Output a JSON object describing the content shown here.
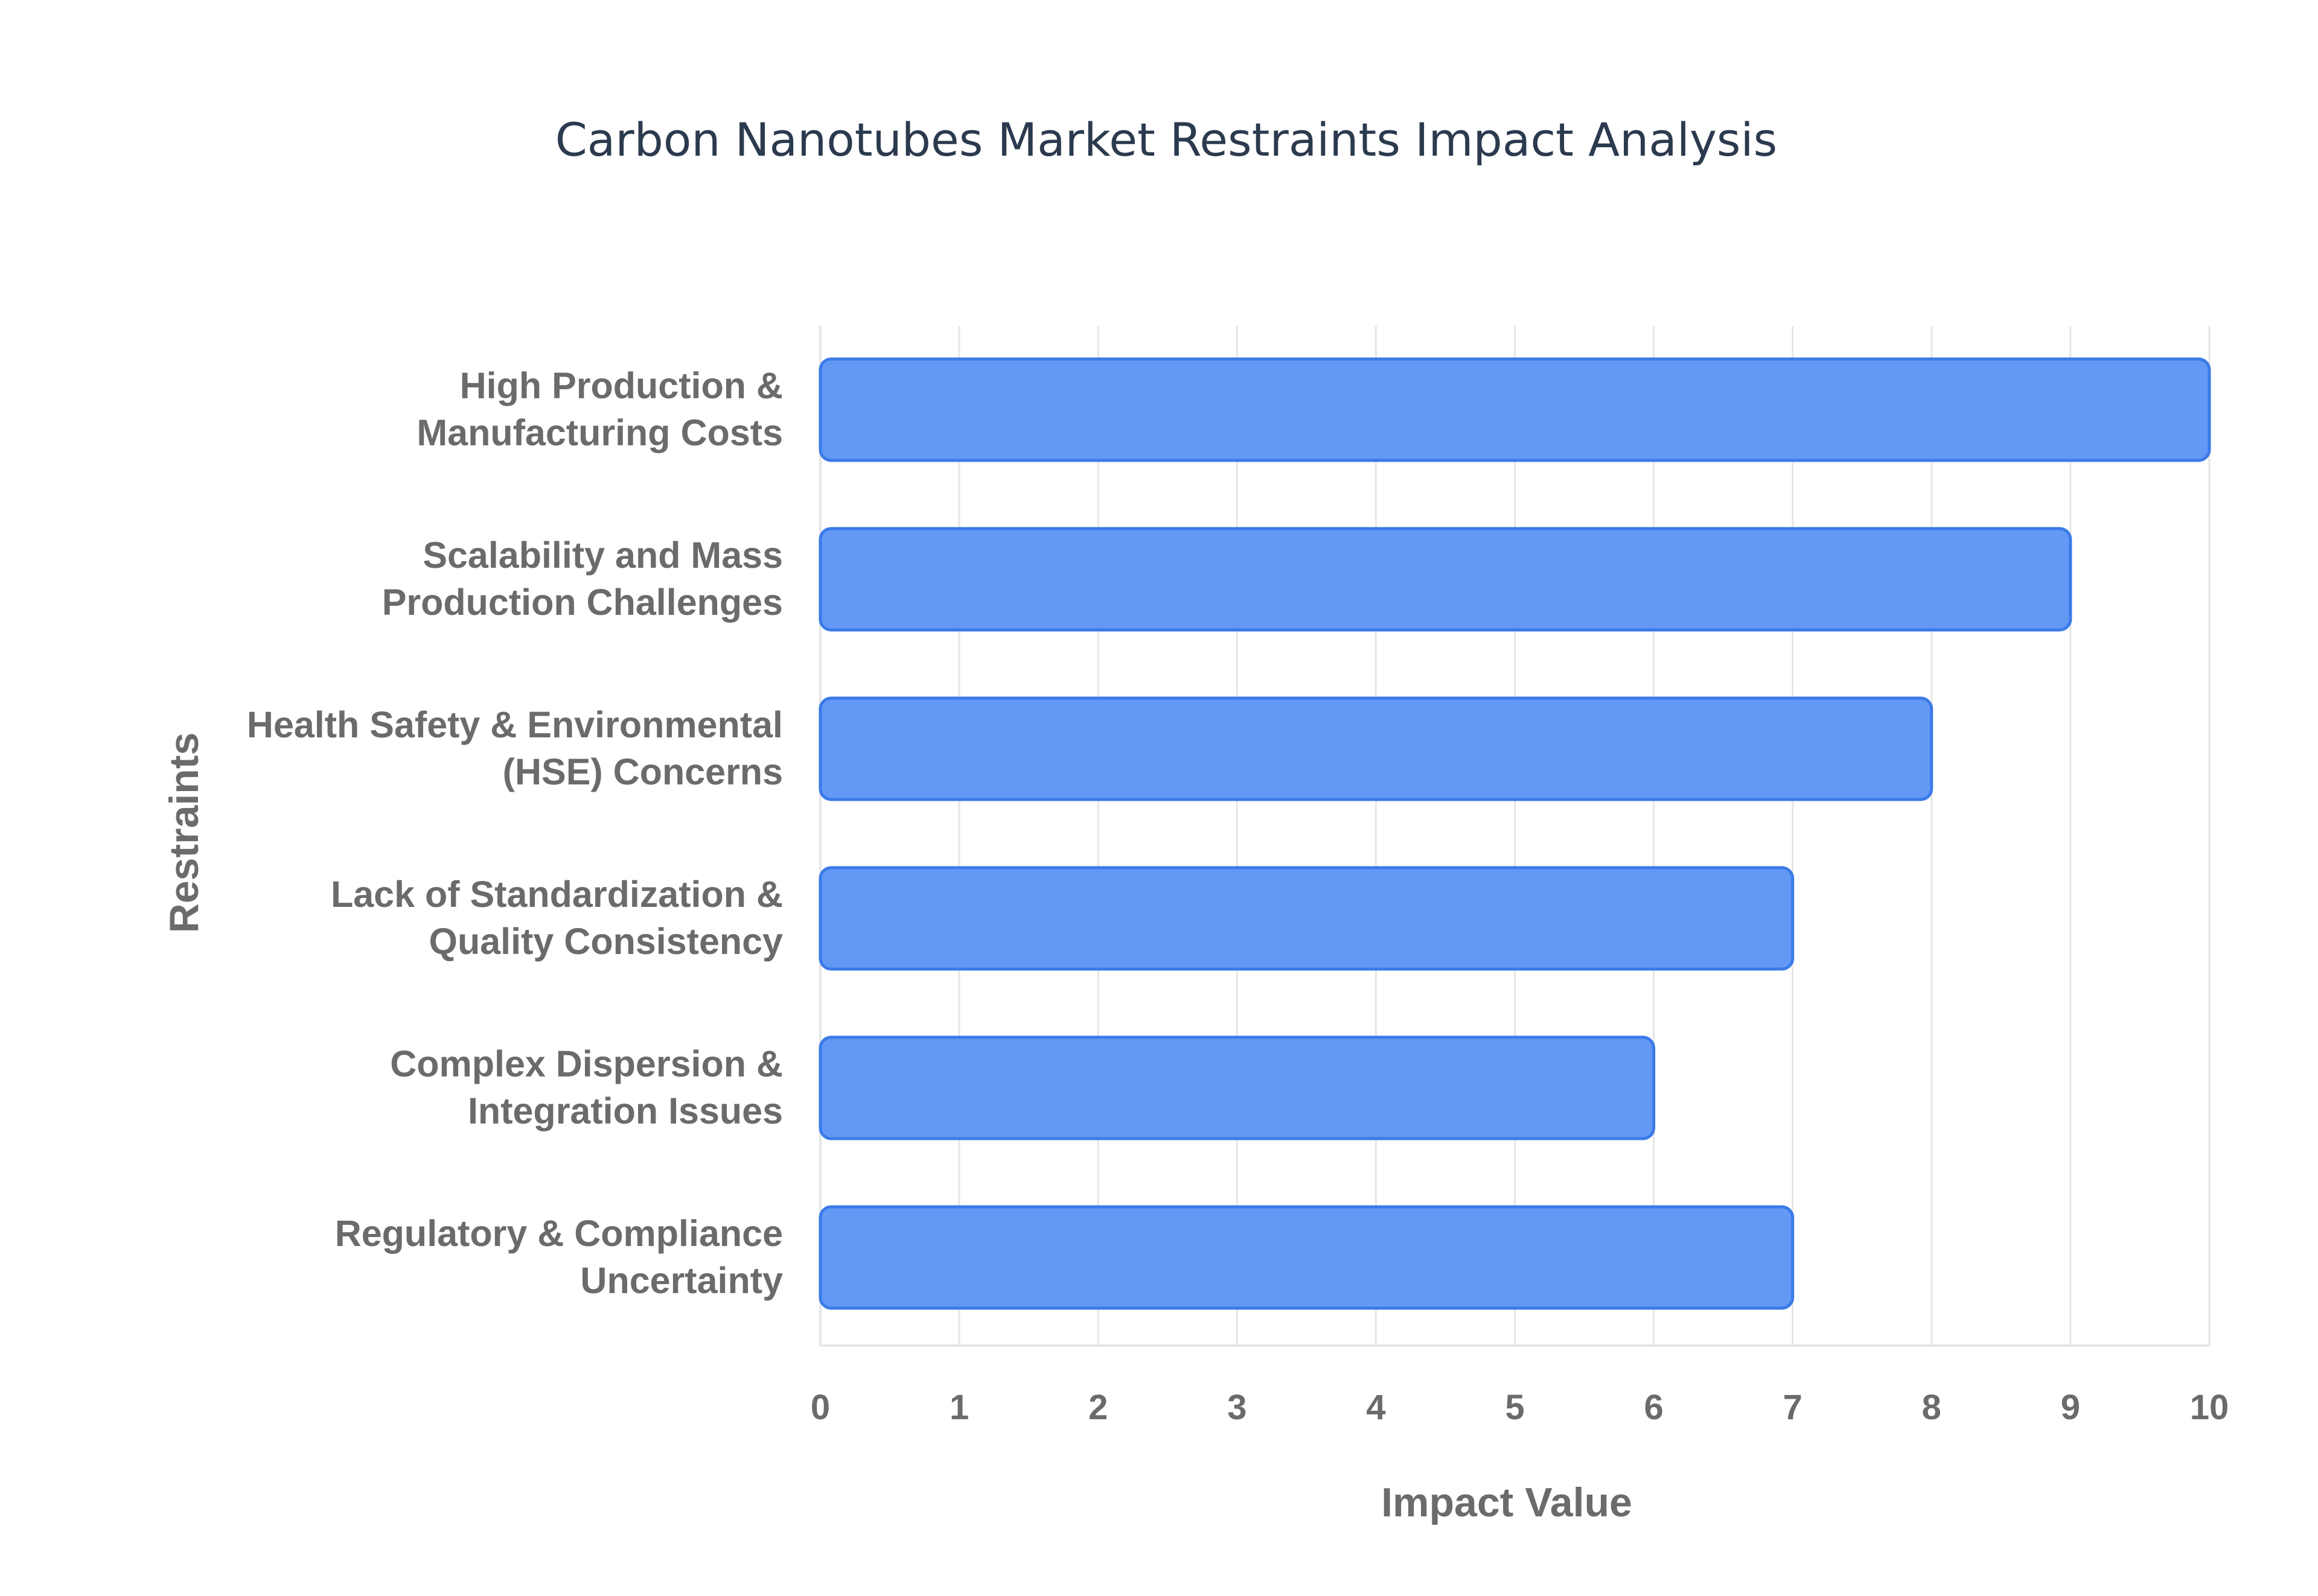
{
  "chart_data": {
    "type": "bar",
    "orientation": "horizontal",
    "title": "Carbon Nanotubes Market Restraints Impact Analysis",
    "xlabel": "Impact Value",
    "ylabel": "Restraints",
    "xlim": [
      0,
      10
    ],
    "x_ticks": [
      "0",
      "1",
      "2",
      "3",
      "4",
      "5",
      "6",
      "7",
      "8",
      "9",
      "10"
    ],
    "grid": true,
    "legend": "none",
    "categories": [
      [
        "High Production &",
        "Manufacturing Costs"
      ],
      [
        "Scalability and Mass",
        "Production Challenges"
      ],
      [
        "Health Safety & Environmental",
        "(HSE) Concerns"
      ],
      [
        "Lack of Standardization &",
        "Quality Consistency"
      ],
      [
        "Complex Dispersion &",
        "Integration Issues"
      ],
      [
        "Regulatory & Compliance",
        "Uncertainty"
      ]
    ],
    "values": [
      10,
      9,
      8,
      7,
      6,
      7
    ],
    "colors": {
      "bar_fill": "#6399f5",
      "bar_stroke": "#3b7ae8"
    }
  }
}
